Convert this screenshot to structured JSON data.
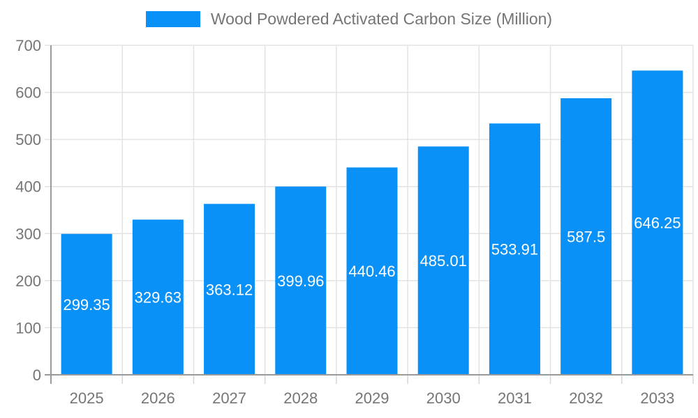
{
  "chart_data": {
    "type": "bar",
    "title": "Wood Powdered Activated Carbon Size (Million)",
    "categories": [
      "2025",
      "2026",
      "2027",
      "2028",
      "2029",
      "2030",
      "2031",
      "2032",
      "2033"
    ],
    "series": [
      {
        "name": "Wood Powdered Activated Carbon Size (Million)",
        "values": [
          299.35,
          329.63,
          363.12,
          399.96,
          440.46,
          485.01,
          533.91,
          587.5,
          646.25
        ]
      }
    ],
    "value_labels": [
      "299.35",
      "329.63",
      "363.12",
      "399.96",
      "440.46",
      "485.01",
      "533.91",
      "587.5",
      "646.25"
    ],
    "xlabel": "",
    "ylabel": "",
    "ylim": [
      0,
      700
    ],
    "ytick_interval": 100,
    "ytick_labels": [
      "0",
      "100",
      "200",
      "300",
      "400",
      "500",
      "600",
      "700"
    ],
    "grid": true,
    "legend_position": "top",
    "colors": {
      "bar": "#0a91f8",
      "gridline": "#e3e3e3",
      "tick": "#d6d6d6",
      "axis_line": "#9a9a9a",
      "axis_text": "#757575",
      "value_text": "#ffffff",
      "background": "#ffffff"
    }
  }
}
